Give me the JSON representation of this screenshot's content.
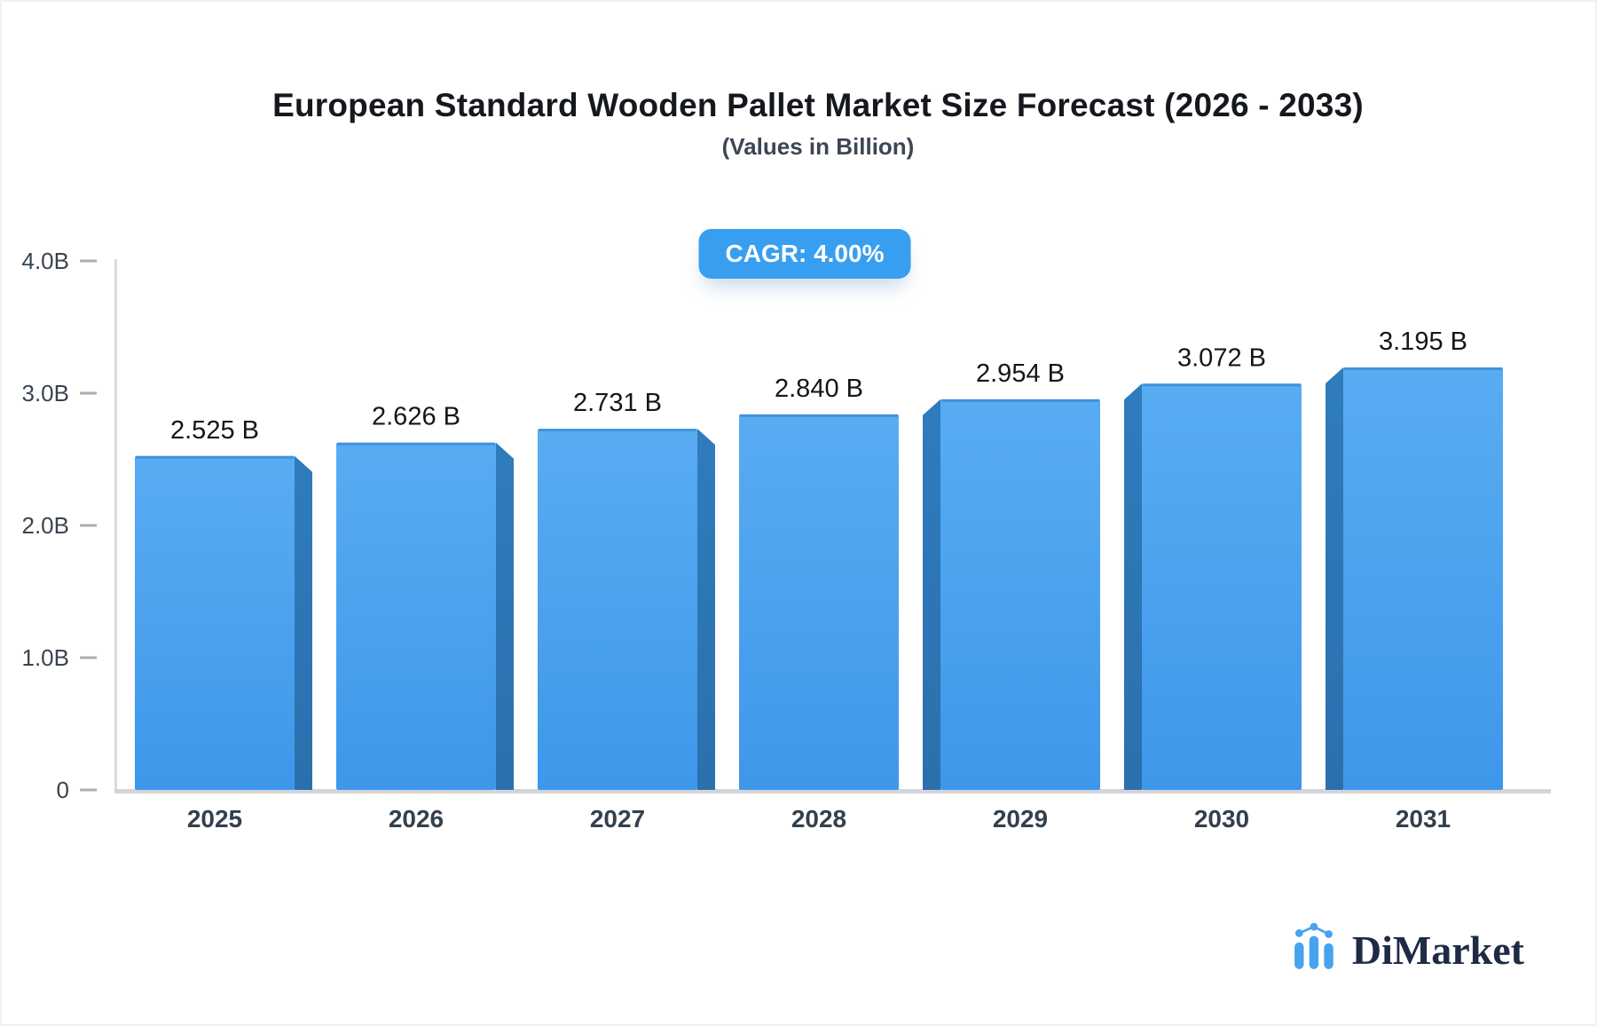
{
  "page": {
    "title": "European Standard Wooden Pallet Market Size Forecast (2026 - 2033)",
    "subtitle": "(Values in Billion)"
  },
  "badge": {
    "label": "CAGR: 4.00%"
  },
  "chart_data": {
    "type": "bar",
    "title": "European Standard Wooden Pallet Market Size Forecast (2026 - 2033)",
    "subtitle": "(Values in Billion)",
    "cagr_label": "CAGR: 4.00%",
    "categories": [
      "2025",
      "2026",
      "2027",
      "2028",
      "2029",
      "2030",
      "2031"
    ],
    "values": [
      2.525,
      2.626,
      2.731,
      2.84,
      2.954,
      3.072,
      3.195
    ],
    "value_labels": [
      "2.525 B",
      "2.626 B",
      "2.731 B",
      "2.840 B",
      "2.954 B",
      "3.072 B",
      "3.195 B"
    ],
    "xlabel": "",
    "ylabel": "",
    "ylim": [
      0,
      4
    ],
    "ytick_values": [
      0,
      1,
      2,
      3,
      4
    ],
    "ytick_labels": [
      "0",
      "1.0B",
      "2.0B",
      "3.0B",
      "4.0B"
    ],
    "grid": false,
    "legend": "none",
    "style_3d": true,
    "colors": {
      "bar_face_top": "#59acf2",
      "bar_face_bottom": "#3e97ea",
      "bar_top_edge": "#3c8ed9",
      "bar_side_top": "#2f7cbd",
      "bar_side_bottom": "#2b70ad",
      "axis_line": "#d9dade",
      "baseline": "#d3d4d9",
      "tick_dash": "#a9aeb6",
      "value_label": "#141619",
      "year_label": "#33404e",
      "ytick_label": "#3a4450",
      "accent": "#389ff0"
    }
  },
  "brand": {
    "name": "DiMarket",
    "icon": "mini-bar-trend-icon",
    "icon_color": "#49a2ef"
  }
}
